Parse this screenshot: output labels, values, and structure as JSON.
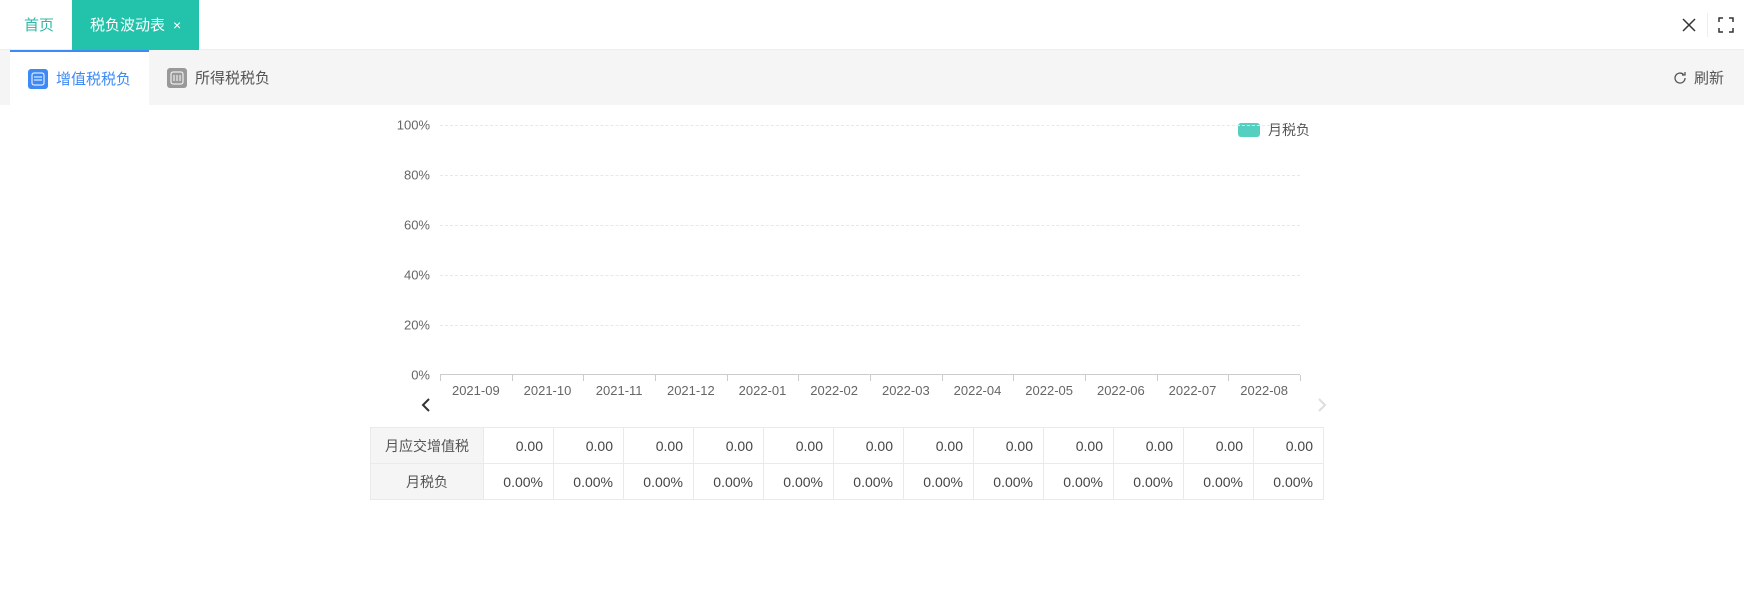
{
  "topTabs": {
    "home": "首页",
    "active": "税负波动表"
  },
  "subTabs": {
    "vat": "增值税税负",
    "income": "所得税税负"
  },
  "refreshLabel": "刷新",
  "legend": {
    "label": "月税负",
    "color": "#55d0c0"
  },
  "chart": {
    "type": "line",
    "yTicks": [
      "0%",
      "20%",
      "40%",
      "60%",
      "80%",
      "100%"
    ],
    "yTop": 100,
    "months": [
      "2021-09",
      "2021-10",
      "2021-11",
      "2021-12",
      "2022-01",
      "2022-02",
      "2022-03",
      "2022-04",
      "2022-05",
      "2022-06",
      "2022-07",
      "2022-08"
    ],
    "gridColor": "#e8e8e8",
    "axisColor": "#cccccc",
    "textColor": "#666666"
  },
  "table": {
    "rows": [
      {
        "header": "月应交增值税",
        "values": [
          "0.00",
          "0.00",
          "0.00",
          "0.00",
          "0.00",
          "0.00",
          "0.00",
          "0.00",
          "0.00",
          "0.00",
          "0.00",
          "0.00"
        ]
      },
      {
        "header": "月税负",
        "values": [
          "0.00%",
          "0.00%",
          "0.00%",
          "0.00%",
          "0.00%",
          "0.00%",
          "0.00%",
          "0.00%",
          "0.00%",
          "0.00%",
          "0.00%",
          "0.00%"
        ]
      }
    ]
  }
}
